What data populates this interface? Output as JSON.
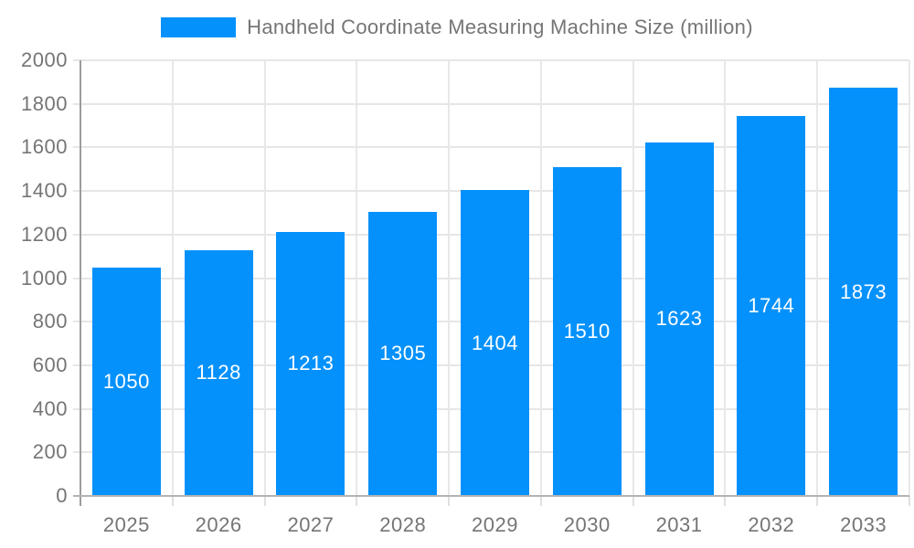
{
  "chart_data": {
    "type": "bar",
    "title": "",
    "series_name": "Handheld Coordinate Measuring Machine Size (million)",
    "categories": [
      "2025",
      "2026",
      "2027",
      "2028",
      "2029",
      "2030",
      "2031",
      "2032",
      "2033"
    ],
    "values": [
      1050,
      1128,
      1213,
      1305,
      1404,
      1510,
      1623,
      1744,
      1873
    ],
    "xlabel": "",
    "ylabel": "",
    "ylim": [
      0,
      2000
    ],
    "ytick_step": 200,
    "grid": true,
    "legend_position": "top",
    "value_labels": "inside-center",
    "colors": {
      "bar": "#0591fb",
      "value_label": "#ffffff",
      "axis_text": "#757575",
      "legend_text": "#757575",
      "gridline_h": "#e6e6e6",
      "gridline_v": "#e8e8e8",
      "tick": "#e0e0e0",
      "y_axis_line": "#9c9c9c",
      "x_axis_line": "#b3b3b3",
      "background": "#ffffff"
    }
  }
}
